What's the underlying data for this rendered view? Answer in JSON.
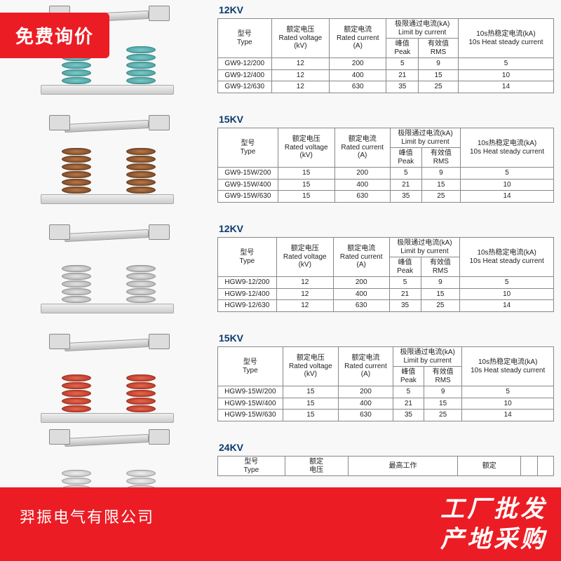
{
  "badge_top_left": "免费询价",
  "company_name": "羿振电气有限公司",
  "bottom_right_line1": "工厂批发",
  "bottom_right_line2": "产地采购",
  "device_colors": {
    "teal": "#3a9a9a",
    "brown": "#6e3d1c",
    "grey": "#a8a8a8",
    "red": "#b22d18",
    "grey2": "#b9b9b9",
    "base": "#cccccc",
    "metal": "#bbbbbb"
  },
  "brand_red": "#ec1c24",
  "title_color": "#0a3a6e",
  "border_color": "#888888",
  "background": "#f8f8f8",
  "header_labels": {
    "type_cn": "型号",
    "type_en": "Type",
    "voltage_cn": "额定电压",
    "voltage_en": "Rated voltage",
    "voltage_unit": "(kV)",
    "current_cn": "额定电流",
    "current_en": "Rated current",
    "current_unit": "(A)",
    "limit_cn": "极限通过电流(kA)",
    "limit_en": "Limit by current",
    "peak_cn": "峰值",
    "peak_en": "Peak",
    "rms_cn": "有效值",
    "rms_en": "RMS",
    "heat_cn": "10s热稳定电流(kA)",
    "heat_en": "10s Heat steady current",
    "alt_col2_cn": "最高工作",
    "alt_col3_cn": "额定"
  },
  "sections": [
    {
      "title": "12KV",
      "insulator_style": "teal",
      "rows": [
        {
          "type": "GW9-12/200",
          "kv": 12,
          "a": 200,
          "peak": 5,
          "rms": 9,
          "heat": 5
        },
        {
          "type": "GW9-12/400",
          "kv": 12,
          "a": 400,
          "peak": 21,
          "rms": 15,
          "heat": 10
        },
        {
          "type": "GW9-12/630",
          "kv": 12,
          "a": 630,
          "peak": 35,
          "rms": 25,
          "heat": 14
        }
      ]
    },
    {
      "title": "15KV",
      "insulator_style": "brown",
      "rows": [
        {
          "type": "GW9-15W/200",
          "kv": 15,
          "a": 200,
          "peak": 5,
          "rms": 9,
          "heat": 5
        },
        {
          "type": "GW9-15W/400",
          "kv": 15,
          "a": 400,
          "peak": 21,
          "rms": 15,
          "heat": 10
        },
        {
          "type": "GW9-15W/630",
          "kv": 15,
          "a": 630,
          "peak": 35,
          "rms": 25,
          "heat": 14
        }
      ]
    },
    {
      "title": "12KV",
      "insulator_style": "grey",
      "rows": [
        {
          "type": "HGW9-12/200",
          "kv": 12,
          "a": 200,
          "peak": 5,
          "rms": 9,
          "heat": 5
        },
        {
          "type": "HGW9-12/400",
          "kv": 12,
          "a": 400,
          "peak": 21,
          "rms": 15,
          "heat": 10
        },
        {
          "type": "HGW9-12/630",
          "kv": 12,
          "a": 630,
          "peak": 35,
          "rms": 25,
          "heat": 14
        }
      ]
    },
    {
      "title": "15KV",
      "insulator_style": "red",
      "rows": [
        {
          "type": "HGW9-15W/200",
          "kv": 15,
          "a": 200,
          "peak": 5,
          "rms": 9,
          "heat": 5
        },
        {
          "type": "HGW9-15W/400",
          "kv": 15,
          "a": 400,
          "peak": 21,
          "rms": 15,
          "heat": 10
        },
        {
          "type": "HGW9-15W/630",
          "kv": 15,
          "a": 630,
          "peak": 35,
          "rms": 25,
          "heat": 14
        }
      ]
    },
    {
      "title": "24KV",
      "insulator_style": "grey2",
      "partial": true,
      "alt_header": true,
      "rows": []
    }
  ]
}
